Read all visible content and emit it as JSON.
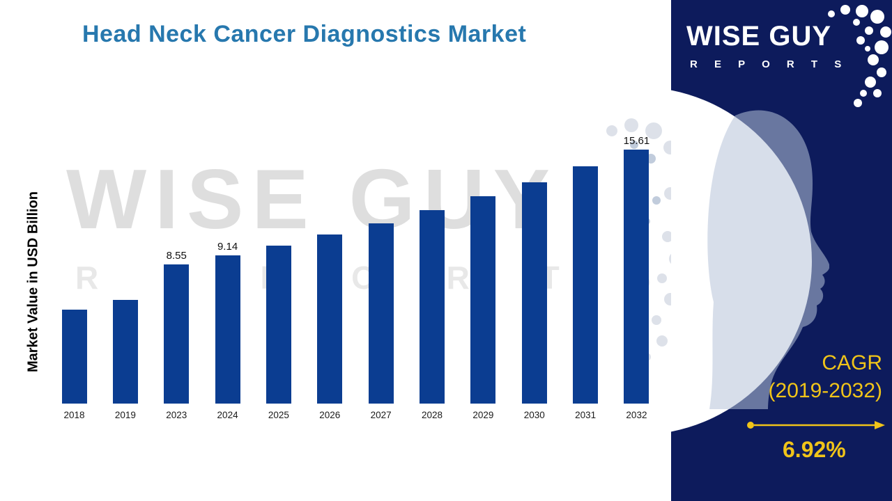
{
  "title": "Head Neck Cancer Diagnostics Market",
  "ylabel": "Market Value in USD Billion",
  "watermark": {
    "line1": "WISE GUY",
    "line2": "R E P O R T S"
  },
  "logo": {
    "line1": "WISE GUY",
    "line2": "R E P O R T S"
  },
  "sidebar": {
    "cagr_label": "CAGR",
    "cagr_range": "(2019-2032)",
    "cagr_value": "6.92%"
  },
  "colors": {
    "bar": "#0b3d91",
    "title": "#2778ae",
    "sidebar_bg": "#0d1b5c",
    "accent": "#f0c419"
  },
  "chart_data": {
    "type": "bar",
    "title": "Head Neck Cancer Diagnostics Market",
    "xlabel": "",
    "ylabel": "Market Value in USD Billion",
    "ylim": [
      0,
      18.5
    ],
    "grid": false,
    "categories": [
      "2018",
      "2019",
      "2023",
      "2024",
      "2025",
      "2026",
      "2027",
      "2028",
      "2029",
      "2030",
      "2031",
      "2032"
    ],
    "values": [
      5.8,
      6.4,
      8.55,
      9.14,
      9.7,
      10.4,
      11.1,
      11.9,
      12.75,
      13.6,
      14.6,
      15.61
    ],
    "labels": [
      "",
      "",
      "8.55",
      "9.14",
      "",
      "",
      "",
      "",
      "",
      "",
      "",
      "15.61"
    ],
    "bar_color": "#0b3d91"
  }
}
